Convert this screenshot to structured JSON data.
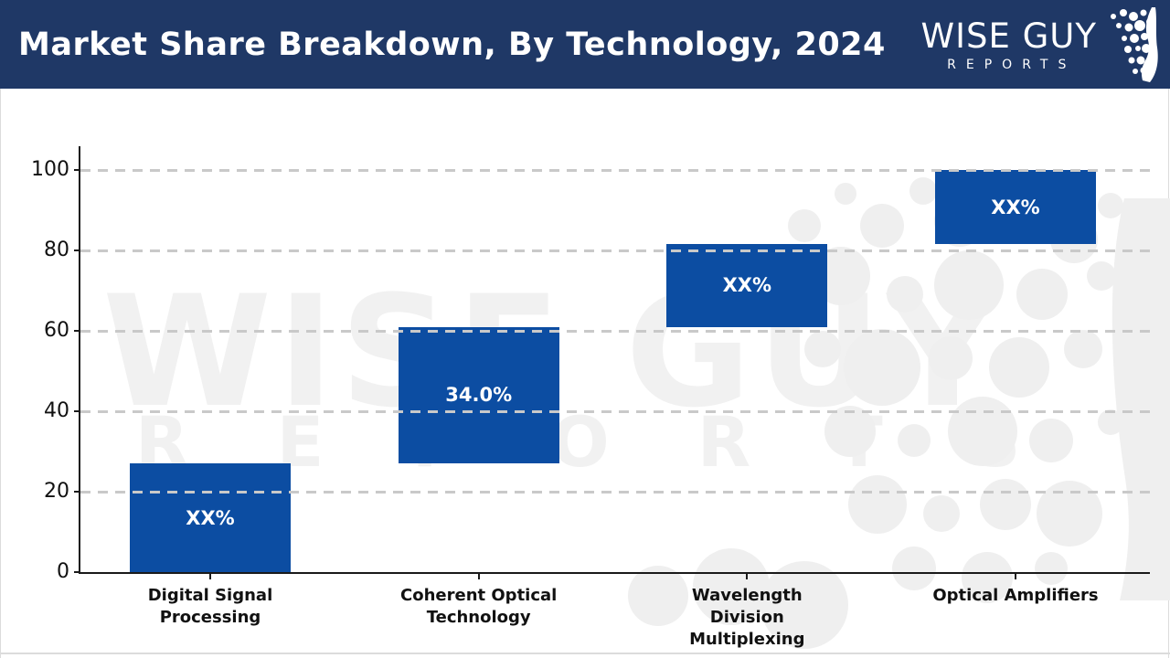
{
  "header": {
    "title": "Market Share Breakdown, By Technology, 2024",
    "logo": {
      "line1": "WISE GUY",
      "line2": "REPORTS"
    }
  },
  "icons": {
    "logo_head": "dotted-head-profile-icon"
  },
  "watermark": {
    "line1": "WISE GUY",
    "line2": "REPORTS"
  },
  "colors": {
    "header_bg": "#1f3866",
    "bar": "#0c4da2",
    "bar_label": "#ffffff",
    "grid": "#c9c9c9",
    "axis": "#1a1a1a",
    "watermark": "#f1f1f1",
    "bottom_hairline": "#d9d9d9"
  },
  "chart_data": {
    "type": "bar",
    "subtype": "waterfall",
    "title": "Market Share Breakdown, By Technology, 2024",
    "categories": [
      "Digital Signal Processing",
      "Coherent Optical Technology",
      "Wavelength Division Multiplexing",
      "Optical Amplifiers"
    ],
    "categories_lines": [
      [
        "Digital Signal",
        "Processing"
      ],
      [
        "Coherent Optical",
        "Technology"
      ],
      [
        "Wavelength",
        "Division",
        "Multiplexing"
      ],
      [
        "Optical Amplifiers"
      ]
    ],
    "series": [
      {
        "name": "Market Share (%)",
        "starts": [
          0,
          27,
          61,
          81.5
        ],
        "values": [
          27,
          34,
          20.5,
          18.5
        ],
        "labels": [
          "XX%",
          "34.0%",
          "XX%",
          "XX%"
        ]
      }
    ],
    "xlabel": "",
    "ylabel": "",
    "ylim": [
      0,
      105
    ],
    "yticks": [
      0,
      20,
      40,
      60,
      80,
      100
    ],
    "grid": "horizontal-dashed",
    "legend": "none"
  }
}
